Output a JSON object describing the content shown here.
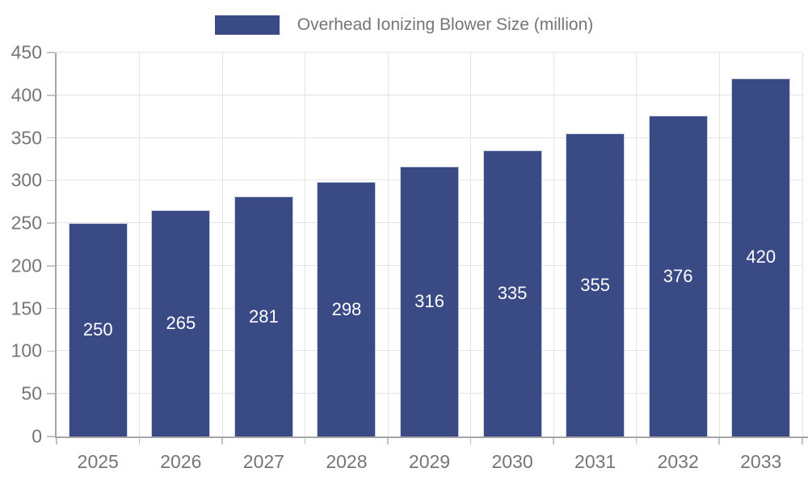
{
  "chart_data": {
    "type": "bar",
    "title": "Overhead Ionizing Blower Size (million)",
    "categories": [
      "2025",
      "2026",
      "2027",
      "2028",
      "2029",
      "2030",
      "2031",
      "2032",
      "2033"
    ],
    "values": [
      250,
      265,
      281,
      298,
      316,
      335,
      355,
      376,
      420
    ],
    "xlabel": "",
    "ylabel": "",
    "ylim": [
      0,
      450
    ],
    "ytick_step": 50,
    "yticks": [
      0,
      50,
      100,
      150,
      200,
      250,
      300,
      350,
      400,
      450
    ],
    "grid": true,
    "legend_position": "top-center",
    "data_labels": "inside-center",
    "colors": {
      "bar": "#3A4A85",
      "bar_border": "#cdd1e0",
      "axis_line": "#a6a6a6",
      "tick": "#c4c4c4",
      "grid_line": "#e3e3e3",
      "axis_text": "#757575",
      "data_label_text": "#ffffff",
      "background": "#ffffff"
    }
  }
}
